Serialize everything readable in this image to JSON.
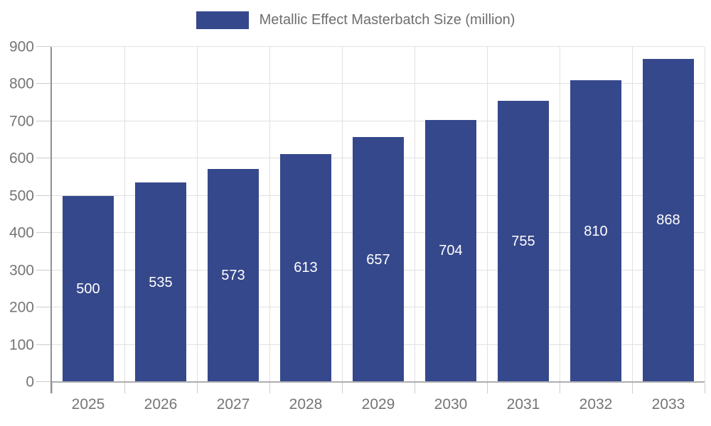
{
  "chart_data": {
    "type": "bar",
    "title": "",
    "legend": "Metallic Effect Masterbatch Size (million)",
    "categories": [
      "2025",
      "2026",
      "2027",
      "2028",
      "2029",
      "2030",
      "2031",
      "2032",
      "2033"
    ],
    "values": [
      500,
      535,
      573,
      613,
      657,
      704,
      755,
      810,
      868
    ],
    "xlabel": "",
    "ylabel": "",
    "ylim": [
      0,
      900
    ],
    "ytick_step": 100,
    "ytick_labels": [
      "0",
      "100",
      "200",
      "300",
      "400",
      "500",
      "600",
      "700",
      "800",
      "900"
    ],
    "grid": true,
    "legend_position": "top-center",
    "bar_color": "#36488C",
    "bar_label_color": "#FFFFFF",
    "gridline_color": "#E1E1E4",
    "axis_line_color": "#8F8F94",
    "tick_color": "#CCCCCC",
    "axis_label_color": "#757575",
    "legend_text_color": "#6E6E6E",
    "background_color": "#FFFFFF"
  }
}
